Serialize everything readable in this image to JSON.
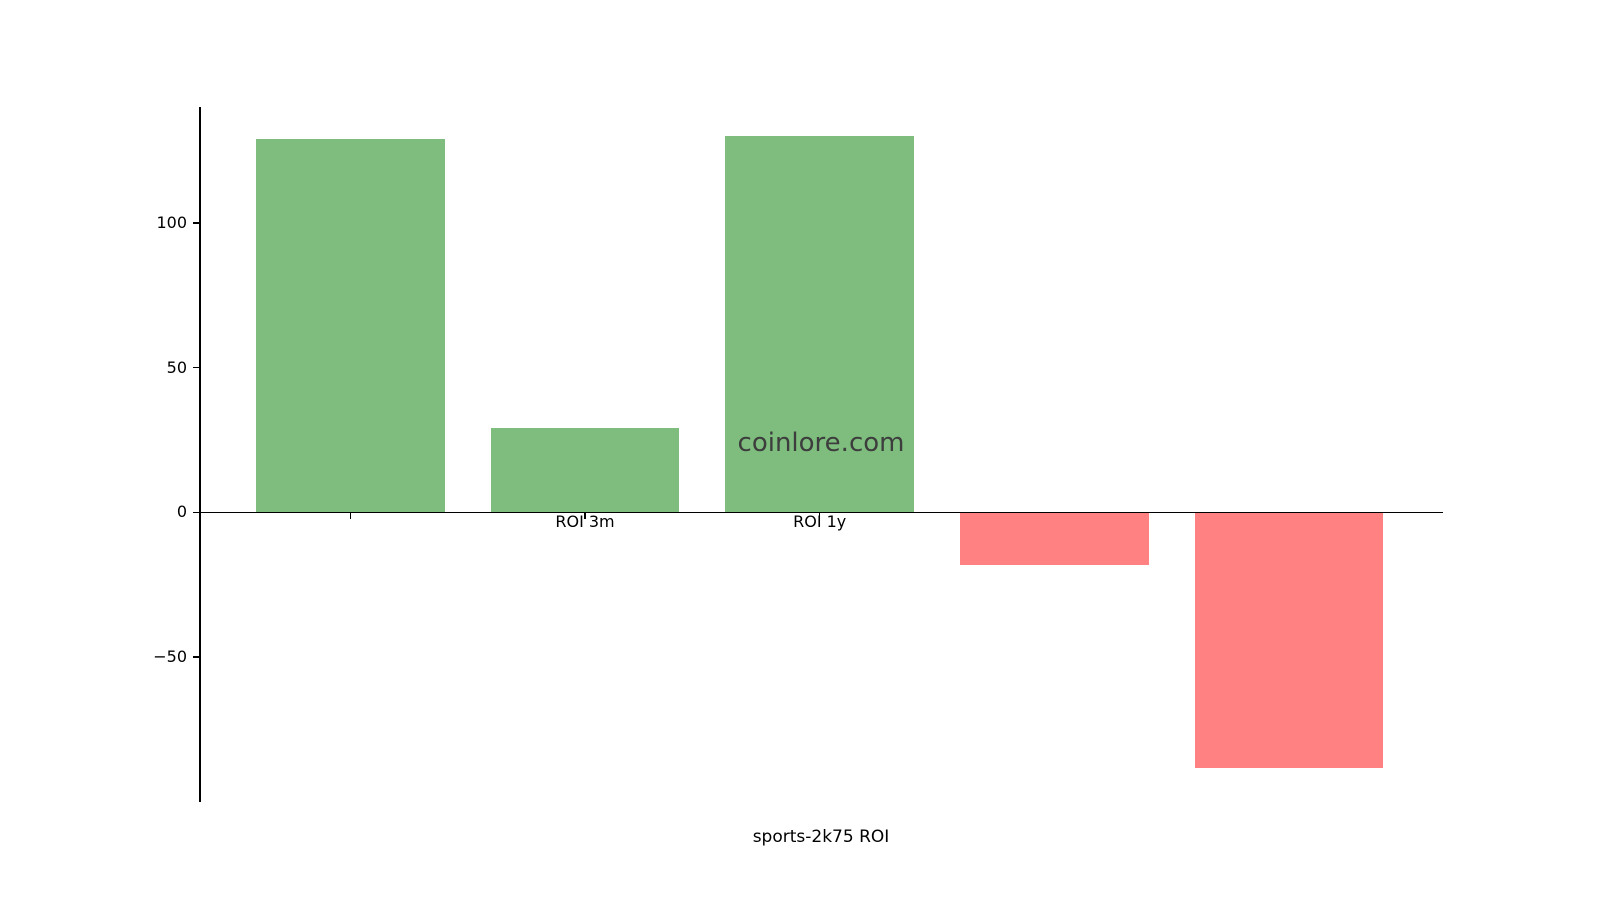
{
  "colors": {
    "positive_bar": "#7ebd7e",
    "negative_bar": "#ff8181",
    "axis": "#000000",
    "watermark_text": "#3d3d3d",
    "tick_text": "#000000"
  },
  "chart_data": {
    "type": "bar",
    "title": "sports-2k75 ROI",
    "watermark": "coinlore.com",
    "categories": [
      "",
      "ROI 3m",
      "ROI 1y",
      "",
      ""
    ],
    "values": [
      129,
      29,
      130,
      -18,
      -88
    ],
    "bar_colors": [
      "#7ebd7e",
      "#7ebd7e",
      "#7ebd7e",
      "#ff8181",
      "#ff8181"
    ],
    "xlabel": "sports-2k75 ROI",
    "ylabel": "",
    "ylim": [
      -100,
      140
    ],
    "y_ticks": [
      {
        "value": 100,
        "label": "100"
      },
      {
        "value": 50,
        "label": "50"
      },
      {
        "value": 0,
        "label": "0"
      },
      {
        "value": -50,
        "label": "−50"
      }
    ],
    "x_tick_indices": [
      0,
      1,
      2
    ],
    "grid": false,
    "legend": false
  }
}
